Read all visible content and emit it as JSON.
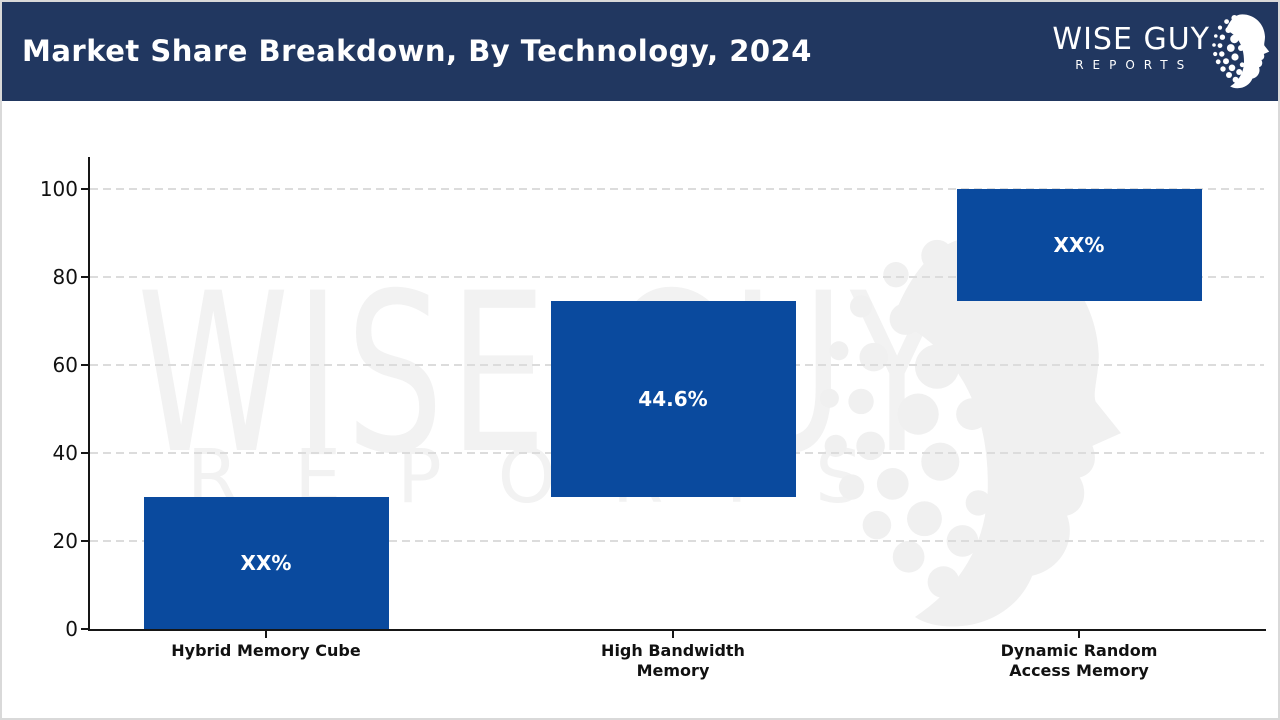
{
  "header": {
    "title": "Market Share Breakdown, By Technology, 2024",
    "logo": {
      "line1": "WISE GUY",
      "line2": "REPORTS"
    }
  },
  "watermark": {
    "line1": "WISE GUY",
    "line2": "REPORTS"
  },
  "chart_data": {
    "type": "bar",
    "subtype": "floating-waterfall",
    "title": "Market Share Breakdown, By Technology, 2024",
    "categories": [
      {
        "name": "Hybrid Memory Cube",
        "lines": [
          "Hybrid Memory Cube"
        ]
      },
      {
        "name": "High Bandwidth Memory",
        "lines": [
          "High Bandwidth",
          "Memory"
        ]
      },
      {
        "name": "Dynamic Random Access Memory",
        "lines": [
          "Dynamic Random",
          "Access Memory"
        ]
      }
    ],
    "segments": [
      {
        "category": "Hybrid Memory Cube",
        "from": 0,
        "to": 30,
        "label": "XX%"
      },
      {
        "category": "High Bandwidth Memory",
        "from": 30,
        "to": 74.6,
        "label": "44.6%"
      },
      {
        "category": "Dynamic Random Access Memory",
        "from": 74.6,
        "to": 100,
        "label": "XX%"
      }
    ],
    "y_ticks": [
      0,
      20,
      40,
      60,
      80,
      100
    ],
    "ylim": [
      0,
      107
    ],
    "xlabel": "",
    "ylabel": "",
    "grid": "horizontal-dashed",
    "legend": "none",
    "bar_color": "#0a4a9e",
    "bar_label_color": "#ffffff",
    "grid_color": "#dcdcdc",
    "axis_color": "#161616",
    "header_bg_color": "#213760",
    "watermark_color": "#f2f2f2"
  }
}
